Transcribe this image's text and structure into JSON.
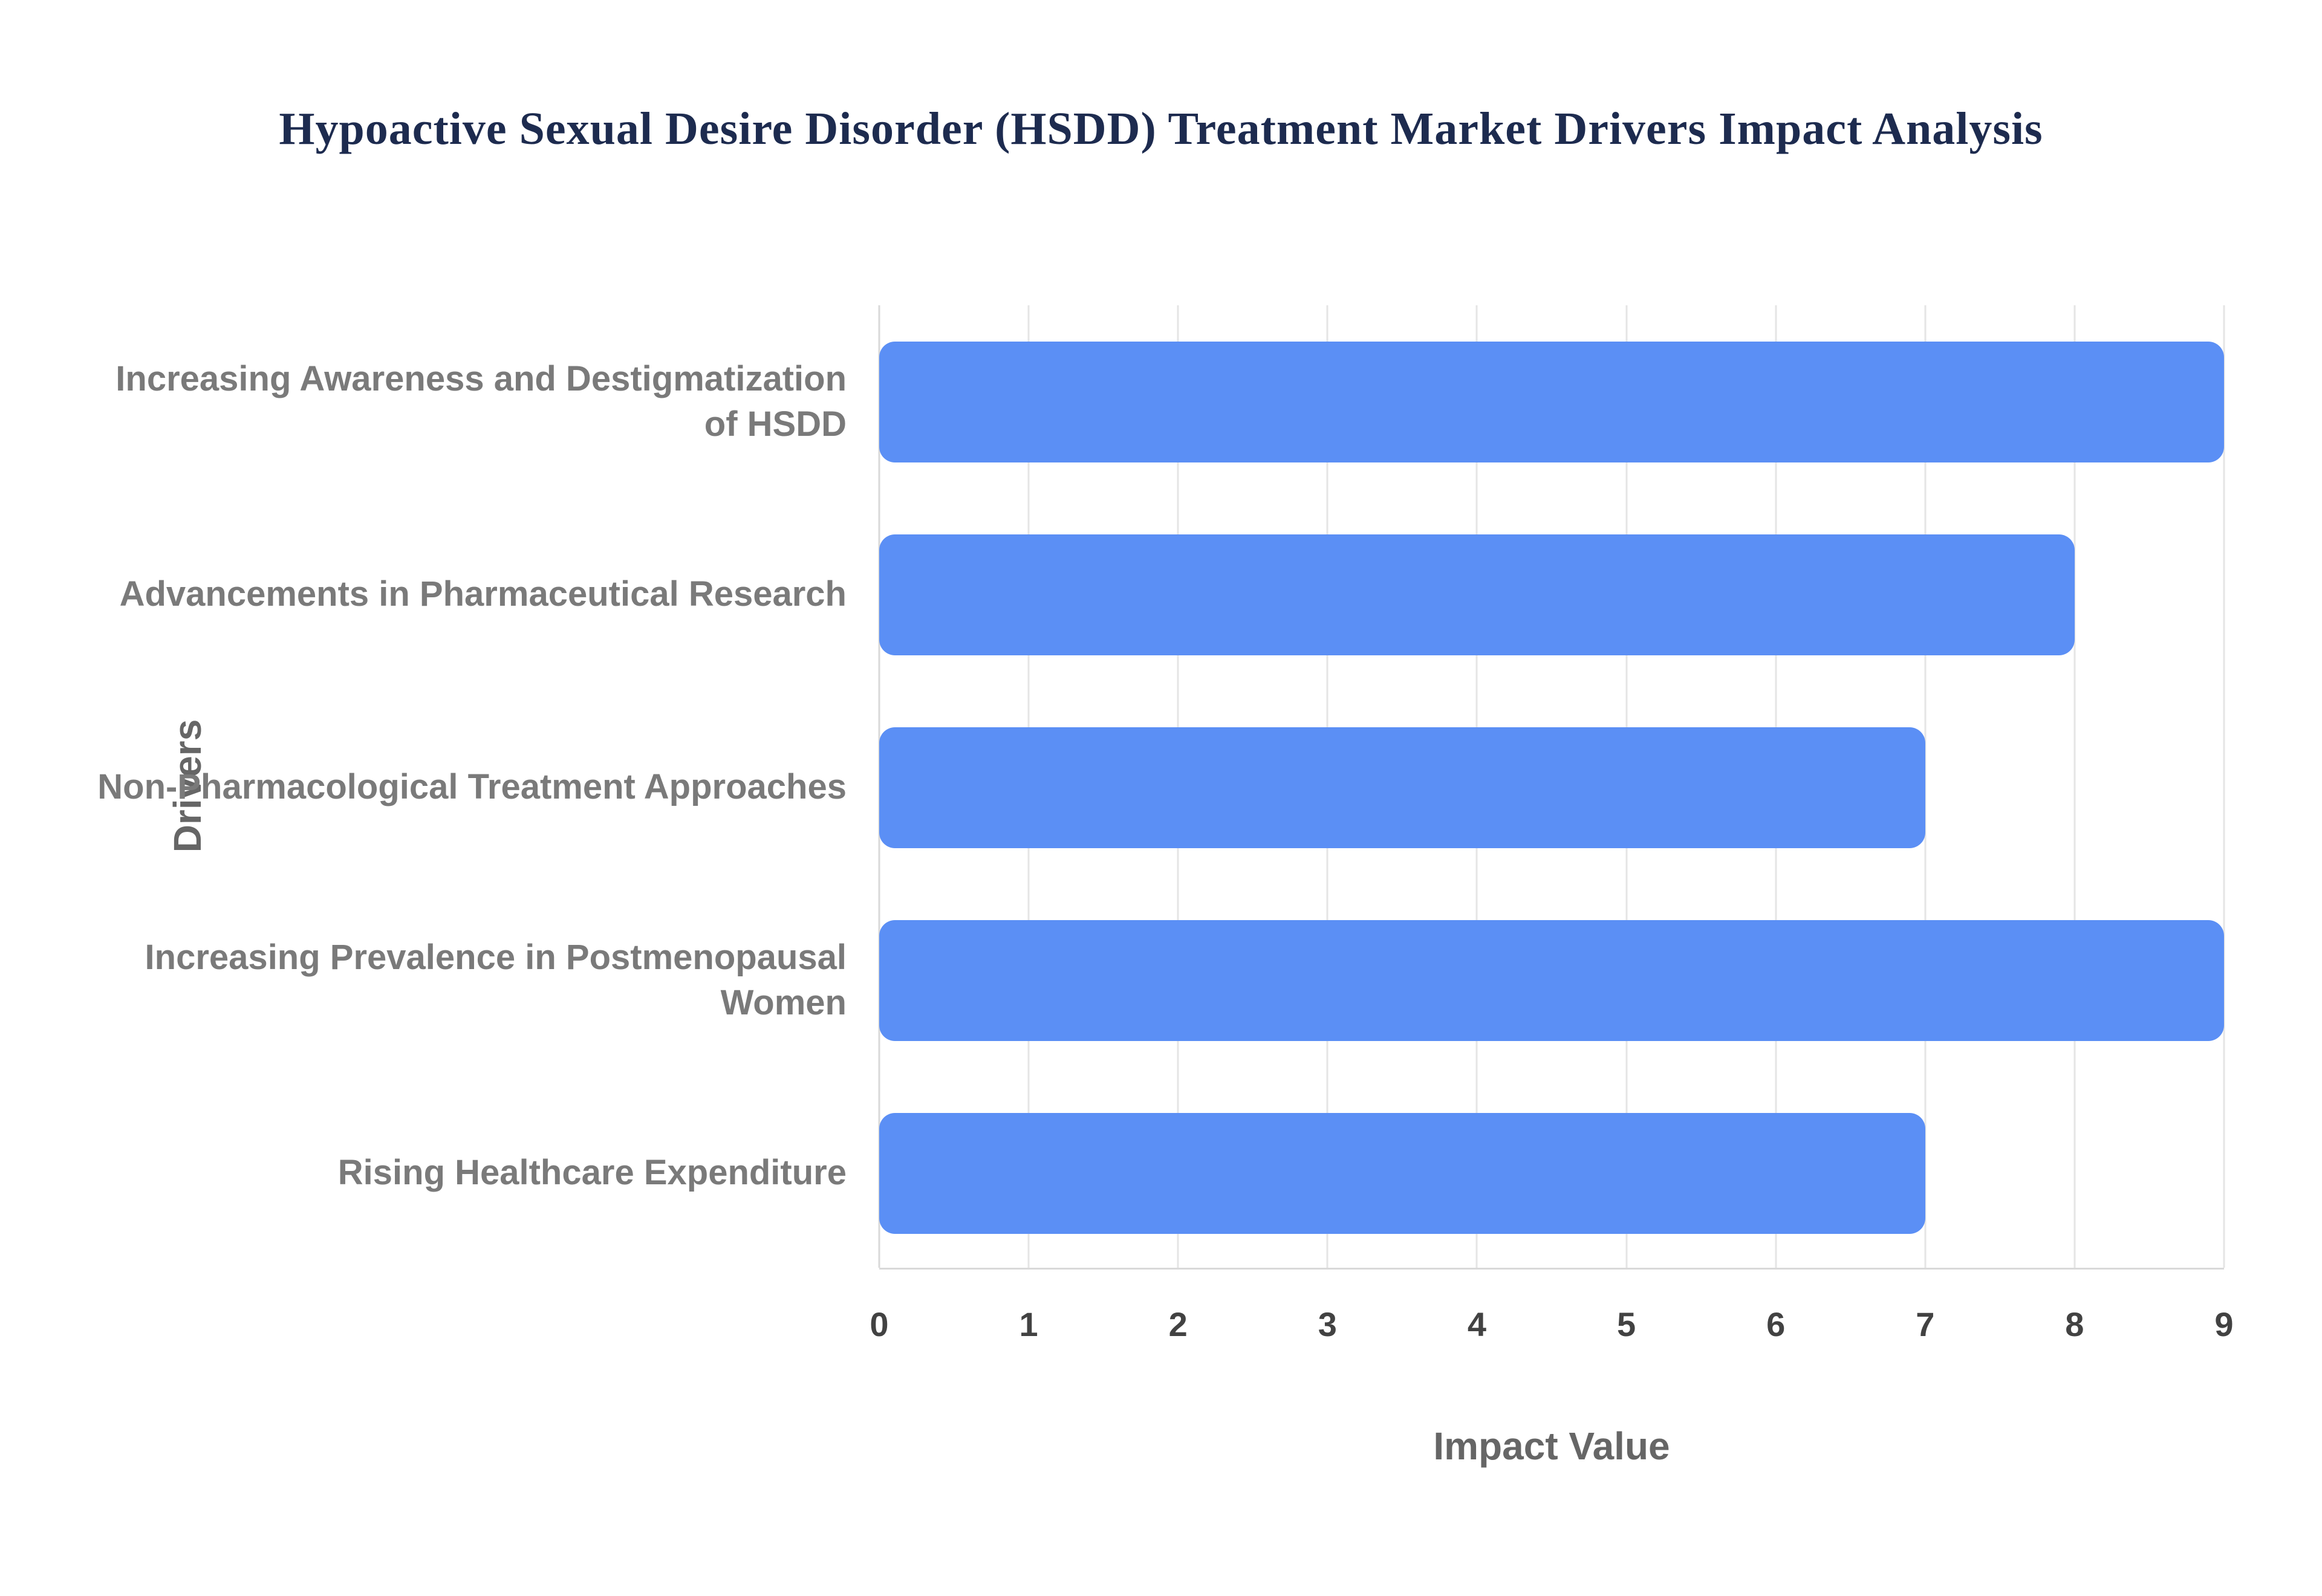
{
  "title": "Hypoactive Sexual Desire Disorder (HSDD) Treatment Market Drivers Impact Analysis",
  "colors": {
    "bar": "#5b8ff5",
    "title": "#1d2b4f",
    "category_label": "#7a7a7a",
    "axis_title": "#666666",
    "tick_label": "#424242",
    "gridline": "#e5e5e5"
  },
  "chart_data": {
    "type": "bar",
    "orientation": "horizontal",
    "title": "Hypoactive Sexual Desire Disorder (HSDD) Treatment Market Drivers Impact Analysis",
    "categories": [
      "Increasing Awareness and Destigmatization of HSDD",
      "Advancements in Pharmaceutical Research",
      "Non-Pharmacological Treatment Approaches",
      "Increasing Prevalence in Postmenopausal Women",
      "Rising Healthcare Expenditure"
    ],
    "values": [
      9,
      8,
      7,
      9,
      7
    ],
    "xlabel": "Impact Value",
    "ylabel": "Drivers",
    "xlim": [
      0,
      9
    ],
    "xticks": [
      0,
      1,
      2,
      3,
      4,
      5,
      6,
      7,
      8,
      9
    ],
    "grid": true,
    "legend": false
  }
}
